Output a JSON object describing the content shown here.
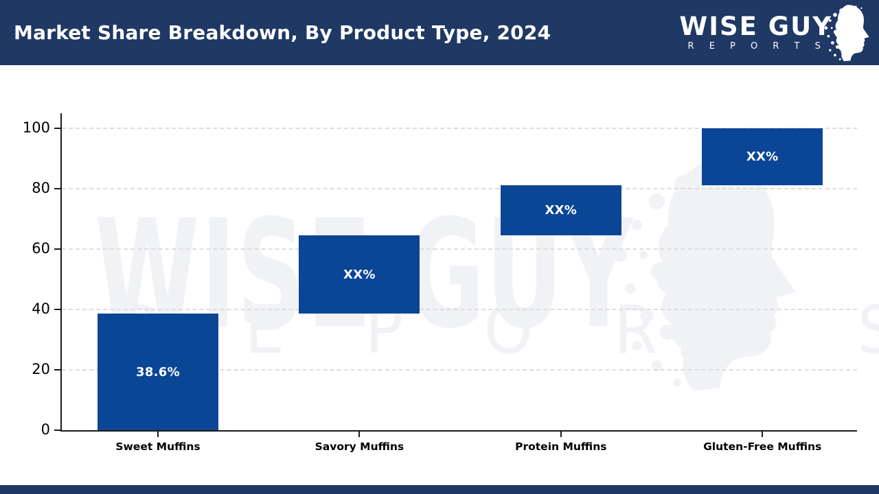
{
  "header": {
    "title": "Market Share Breakdown, By Product Type, 2024",
    "logo": {
      "line1": "WISE GUY",
      "line2": "R E P O R T S"
    }
  },
  "watermark": {
    "line1": "WISE GUY",
    "line2": "R E P O R T S"
  },
  "colors": {
    "header_bg": "#1F3864",
    "footer_bg": "#1F3864",
    "bar": "#0B4696",
    "bar_label": "#FFFFFF",
    "gridline": "#DCDCDC",
    "axis": "#1A1A1A",
    "watermark": "#F1F2F5"
  },
  "chart_data": {
    "type": "bar",
    "variant": "waterfall-floating-bars",
    "title": "Market Share Breakdown, By Product Type, 2024",
    "xlabel": "",
    "ylabel": "",
    "categories": [
      "Sweet Muffins",
      "Savory Muffins",
      "Protein Muffins",
      "Gluten-Free Muffins"
    ],
    "series": [
      {
        "name": "Market Share (%)",
        "segments": [
          {
            "category": "Sweet Muffins",
            "start": 0,
            "end": 38.6,
            "label": "38.6%"
          },
          {
            "category": "Savory Muffins",
            "start": 38.6,
            "end": 64.5,
            "label": "XX%"
          },
          {
            "category": "Protein Muffins",
            "start": 64.5,
            "end": 81.1,
            "label": "XX%"
          },
          {
            "category": "Gluten-Free Muffins",
            "start": 81.1,
            "end": 100,
            "label": "XX%"
          }
        ]
      }
    ],
    "ylim": [
      0,
      100
    ],
    "yticks": [
      0,
      20,
      40,
      60,
      80,
      100
    ],
    "grid": "horizontal-dashed",
    "legend": "none"
  }
}
